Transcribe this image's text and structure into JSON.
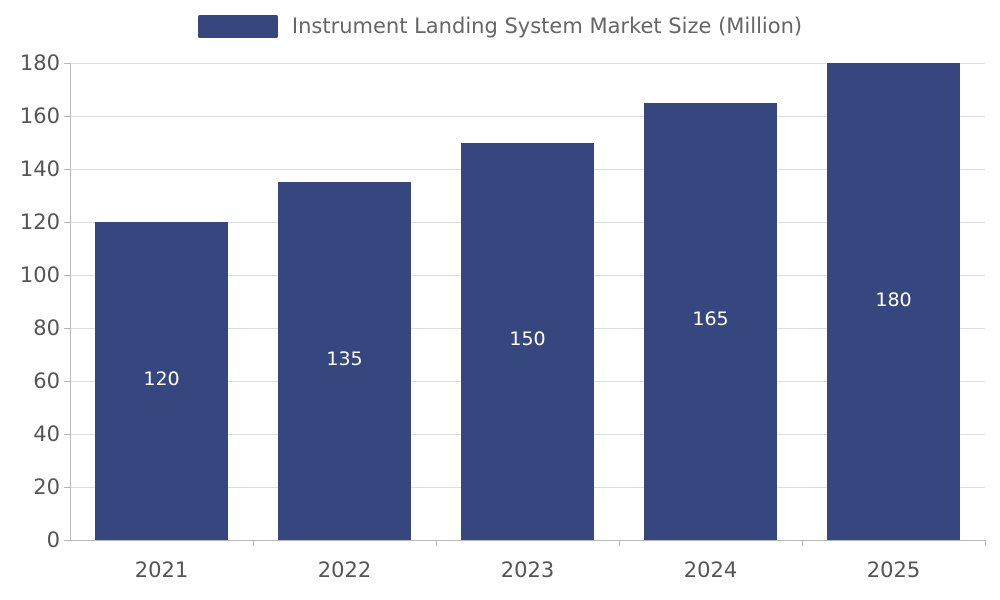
{
  "chart_data": {
    "type": "bar",
    "categories": [
      "2021",
      "2022",
      "2023",
      "2024",
      "2025"
    ],
    "values": [
      120,
      135,
      150,
      165,
      180
    ],
    "title": "Instrument Landing System Market Size (Million)",
    "xlabel": "",
    "ylabel": "",
    "ylim": [
      0,
      180
    ],
    "ytick_step": 20,
    "grid": true,
    "legend_position": "top",
    "colors": {
      "bar": "#36477F",
      "bar_label": "#ffffff",
      "axis_text": "#555555",
      "legend_text": "#666666",
      "gridline": "#dddddd",
      "spine": "#b8b8b8"
    }
  }
}
